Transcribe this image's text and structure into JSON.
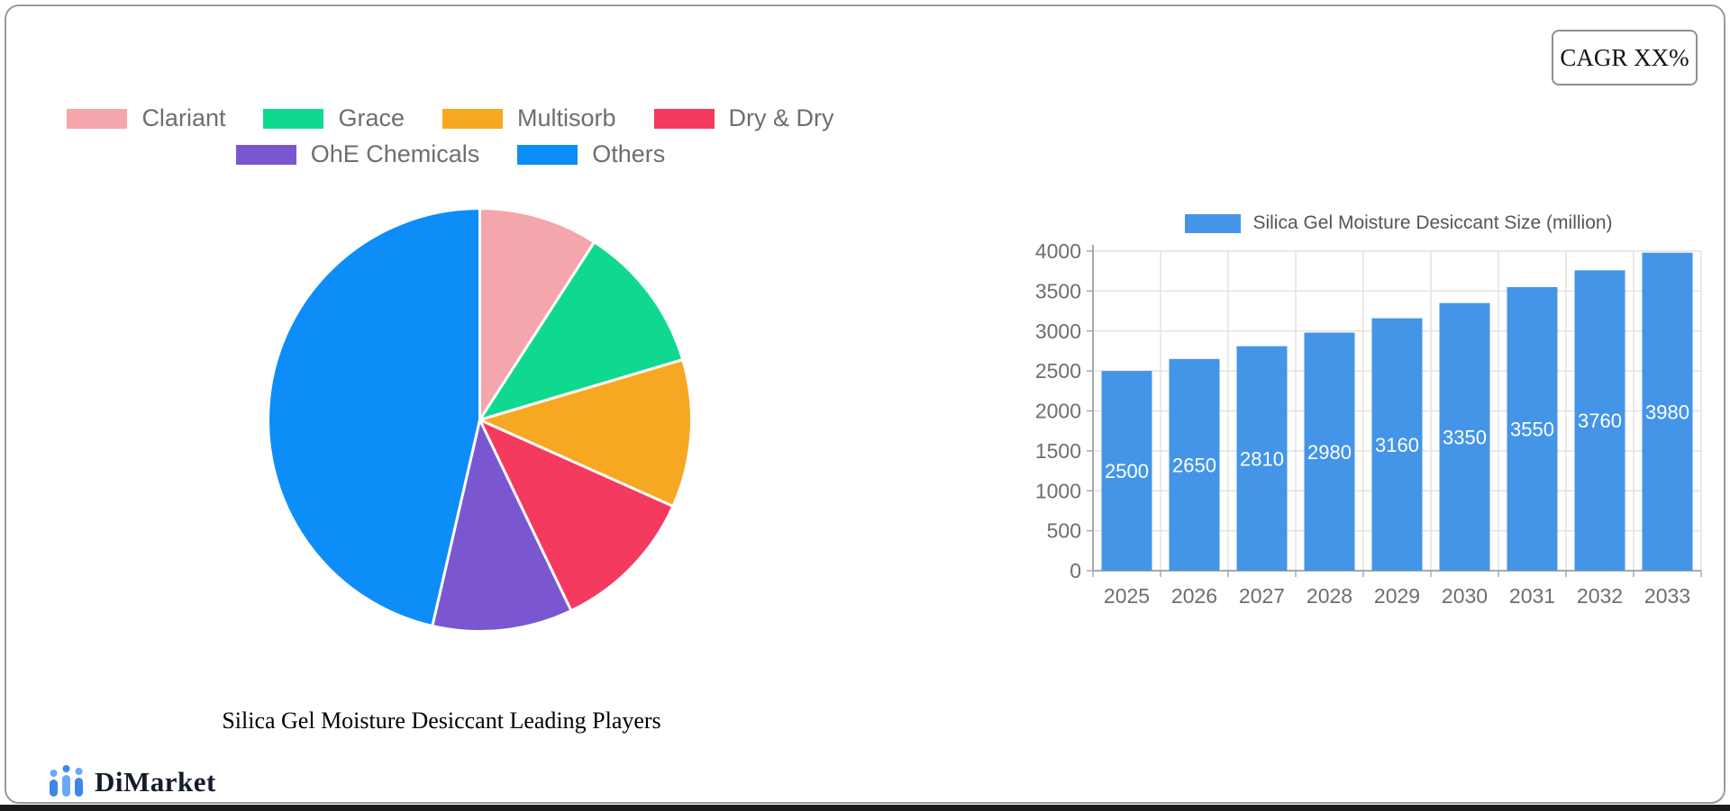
{
  "cagr_box": {
    "label": "CAGR XX%"
  },
  "logo": {
    "text": "DiMarket",
    "icon": "bar-chart-logo-icon"
  },
  "chart_data": [
    {
      "type": "pie",
      "title": "Silica Gel Moisture Desiccant Leading Players",
      "labels": [
        "Clariant",
        "Grace",
        "Multisorb",
        "Dry & Dry",
        "OhE Chemicals",
        "Others"
      ],
      "values": [
        9.1,
        11.3,
        11.3,
        11.2,
        10.7,
        46.4
      ],
      "colors": [
        "#f4a6ac",
        "#0fd98e",
        "#f7a823",
        "#f43a5f",
        "#7a57d1",
        "#0d8df8"
      ],
      "legend_position": "top",
      "legend_items_per_row": 4,
      "start_angle_deg": 0,
      "direction": "clockwise",
      "slice_border_color": "#ffffff"
    },
    {
      "type": "bar",
      "legend_label": "Silica Gel Moisture Desiccant Size (million)",
      "categories": [
        "2025",
        "2026",
        "2027",
        "2028",
        "2029",
        "2030",
        "2031",
        "2032",
        "2033"
      ],
      "values": [
        2500,
        2650,
        2810,
        2980,
        3160,
        3350,
        3550,
        3760,
        3980
      ],
      "bar_color": "#4495e8",
      "value_label_color": "#ffffff",
      "ylim": [
        0,
        4000
      ],
      "ytick_step": 500,
      "grid": true,
      "axis_color": "#a8a8a8",
      "grid_color": "#e3e3e3",
      "tick_label_color": "#6e6e6e"
    }
  ]
}
